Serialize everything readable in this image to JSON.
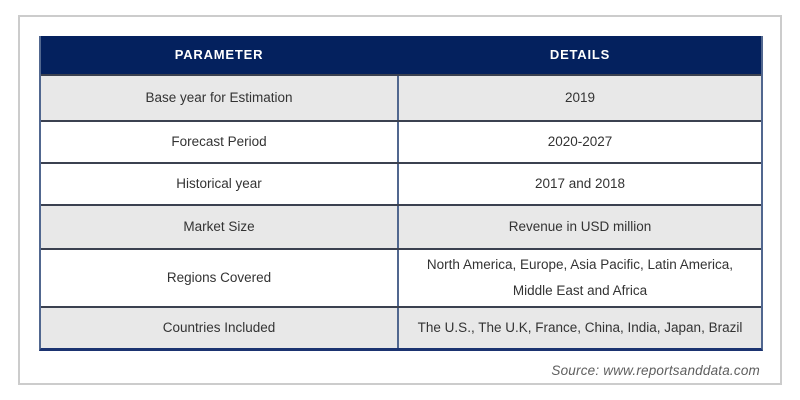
{
  "table": {
    "headers": [
      "PARAMETER",
      "DETAILS"
    ],
    "rows": [
      {
        "parameter": "Base year for Estimation",
        "details": "2019"
      },
      {
        "parameter": "Forecast Period",
        "details": "2020-2027"
      },
      {
        "parameter": "Historical year",
        "details": "2017 and 2018"
      },
      {
        "parameter": "Market Size",
        "details": "Revenue in USD million"
      },
      {
        "parameter": "Regions Covered",
        "details": "North America, Europe, Asia Pacific, Latin America, Middle East and Africa"
      },
      {
        "parameter": "Countries Included",
        "details": "The U.S., The  U.K, France, China, India, Japan, Brazil"
      }
    ]
  },
  "source": {
    "text": "Source: www.reportsanddata.com"
  },
  "colors": {
    "header_background": "#04215e",
    "row_alt_background": "#e8e8e8",
    "grid_horizontal": "#3b4150",
    "grid_vertical": "#51678f",
    "table_bottom_border": "#1b3370",
    "frame_border": "#cccccc",
    "body_text": "#333333",
    "header_text": "#ffffff",
    "source_text": "#5e5e5e"
  }
}
